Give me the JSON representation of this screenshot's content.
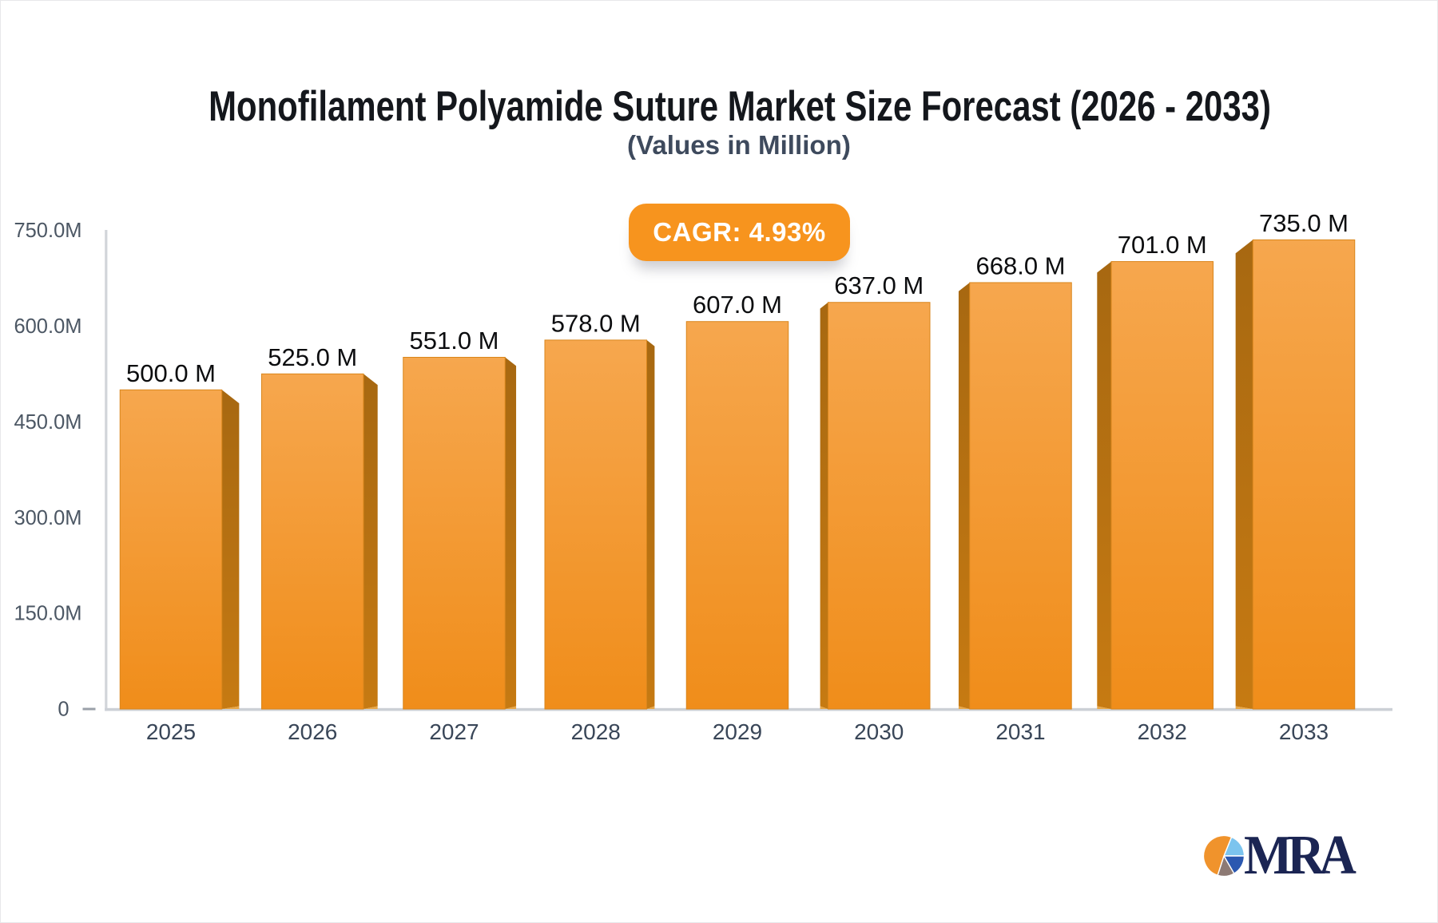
{
  "page": {
    "background": "#ffffff",
    "border_color": "#e7e8ea"
  },
  "chart_data": {
    "type": "bar",
    "title": "Monofilament Polyamide Suture Market Size Forecast (2026 - 2033)",
    "subtitle": "(Values in Million)",
    "cagr_label": "CAGR: 4.93%",
    "categories": [
      "2025",
      "2026",
      "2027",
      "2028",
      "2029",
      "2030",
      "2031",
      "2032",
      "2033"
    ],
    "values": [
      500,
      525,
      551,
      578,
      607,
      637,
      668,
      701,
      735
    ],
    "value_labels": [
      "500.0 M",
      "525.0 M",
      "551.0 M",
      "578.0 M",
      "607.0 M",
      "637.0 M",
      "668.0 M",
      "701.0 M",
      "735.0 M"
    ],
    "unit": "Million",
    "xlabel": "",
    "ylabel": "",
    "ylim": [
      0,
      750
    ],
    "y_ticks": [
      {
        "value": 750,
        "label": "750.0M"
      },
      {
        "value": 600,
        "label": "600.0M"
      },
      {
        "value": 450,
        "label": "450.0M"
      },
      {
        "value": 300,
        "label": "300.0M"
      },
      {
        "value": 150,
        "label": "150.0M"
      },
      {
        "value": 0,
        "label": "0"
      }
    ],
    "grid": false,
    "legend": false,
    "bar_style": {
      "front_top": "#f6a74e",
      "front_bottom": "#f08d1a",
      "front_stroke": "#d9861c",
      "side_top": "#a76811",
      "side_bottom": "#c67a12",
      "side_bevel": "#e8a748"
    },
    "axis_colors": {
      "axis_line": "#d2d5da",
      "baseline": "#ccd0d6",
      "zero_tick": "#9aa0a8",
      "y_label": "#4c5764",
      "x_label": "#394658",
      "value_label": "#0c0d0f"
    },
    "accent_color": "#f7941e"
  },
  "logo": {
    "text": "MRA",
    "text_color": "#1b2553",
    "pie_slices": [
      {
        "name": "light-blue",
        "color": "#7cc4ee",
        "start_deg": 22,
        "end_deg": 90
      },
      {
        "name": "dark-blue",
        "color": "#2b58b0",
        "start_deg": 90,
        "end_deg": 150
      },
      {
        "name": "gray-brown",
        "color": "#8d7a74",
        "start_deg": 150,
        "end_deg": 198
      },
      {
        "name": "orange",
        "color": "#f0932c",
        "start_deg": 198,
        "end_deg": 382
      }
    ]
  }
}
